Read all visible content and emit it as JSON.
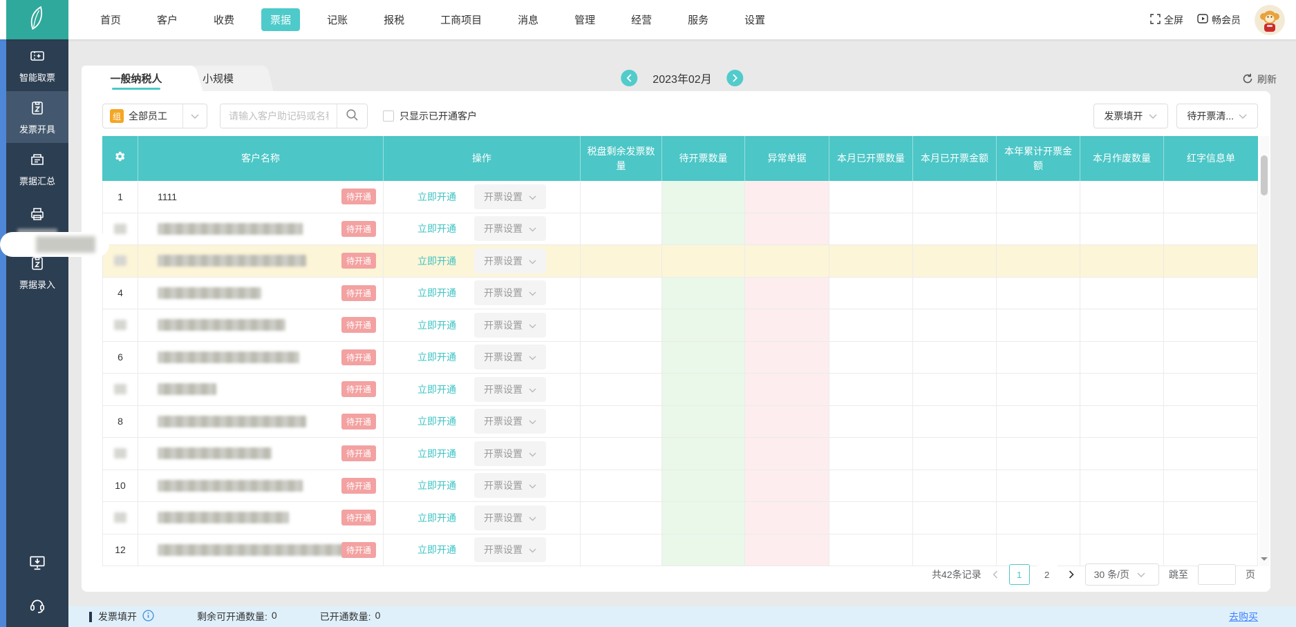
{
  "topnav": {
    "items": [
      "首页",
      "客户",
      "收费",
      "票据",
      "记账",
      "报税",
      "工商项目",
      "消息",
      "管理",
      "经营",
      "服务",
      "设置"
    ],
    "active": "票据",
    "fullscreen": "全屏",
    "member": "畅会员"
  },
  "sidebar": {
    "items": [
      {
        "label": "智能取票",
        "icon": "ticket-plus-icon",
        "active": false,
        "redacted": false
      },
      {
        "label": "发票开具",
        "icon": "invoice-issue-icon",
        "active": true,
        "redacted": false
      },
      {
        "label": "票据汇总",
        "icon": "bill-summary-icon",
        "active": false,
        "redacted": false
      },
      {
        "label": "",
        "icon": "printer-icon",
        "active": false,
        "redacted": true
      },
      {
        "label": "票据录入",
        "icon": "bill-entry-icon",
        "active": false,
        "redacted": false
      }
    ]
  },
  "tabs": {
    "active": "一般纳税人",
    "inactive": "小规模"
  },
  "period": {
    "value": "2023年02月"
  },
  "refresh_label": "刷新",
  "filters": {
    "employee_badge": "组",
    "employee_value": "全部员工",
    "search_placeholder": "请输入客户助记码或名称",
    "checkbox_label": "只显示已开通客户",
    "invoice_mode": "发票填开",
    "pending_list": "待开票清..."
  },
  "table": {
    "headers": [
      "客户名称",
      "操作",
      "税盘剩余发票数量",
      "待开票数量",
      "异常单据",
      "本月已开票数量",
      "本月已开票金额",
      "本年累计开票金额",
      "本月作废数量",
      "红字信息单"
    ],
    "badge": "待开通",
    "open_link": "立即开通",
    "settings_button": "开票设置",
    "rows": [
      {
        "num": "1",
        "name": "1111",
        "redact": 0,
        "hl": false
      },
      {
        "num": "",
        "name": "",
        "redact": 210,
        "hl": false
      },
      {
        "num": "",
        "name": "",
        "redact": 215,
        "hl": true
      },
      {
        "num": "4",
        "name": "",
        "redact": 150,
        "hl": false
      },
      {
        "num": "",
        "name": "",
        "redact": 185,
        "hl": false
      },
      {
        "num": "6",
        "name": "",
        "redact": 205,
        "hl": false
      },
      {
        "num": "",
        "name": "",
        "redact": 85,
        "hl": false
      },
      {
        "num": "8",
        "name": "",
        "redact": 215,
        "hl": false
      },
      {
        "num": "",
        "name": "",
        "redact": 165,
        "hl": false
      },
      {
        "num": "10",
        "name": "",
        "redact": 210,
        "hl": false
      },
      {
        "num": "",
        "name": "",
        "redact": 190,
        "hl": false
      },
      {
        "num": "12",
        "name": "",
        "redact": 275,
        "hl": false
      }
    ]
  },
  "pagination": {
    "total": "共42条记录",
    "pages": [
      "1",
      "2"
    ],
    "active_page": "1",
    "per_page": "30 条/页",
    "jump_label": "跳至",
    "page_label": "页"
  },
  "footer": {
    "title": "发票填开",
    "remaining_label": "剩余可开通数量:",
    "remaining_value": "0",
    "opened_label": "已开通数量:",
    "opened_value": "0",
    "buy": "去购买"
  },
  "colors": {
    "brand_teal": "#4cc6c6",
    "logo_teal": "#2fa99c",
    "sidebar_navy": "#2c3e52",
    "badge_salmon": "#f3a1a1",
    "row_highlight": "#fdf5d8",
    "col_green": "#e9f8e9",
    "col_pink": "#fdedee",
    "edge_blue": "#4e86d8",
    "footer_blue": "#dff0fb"
  }
}
